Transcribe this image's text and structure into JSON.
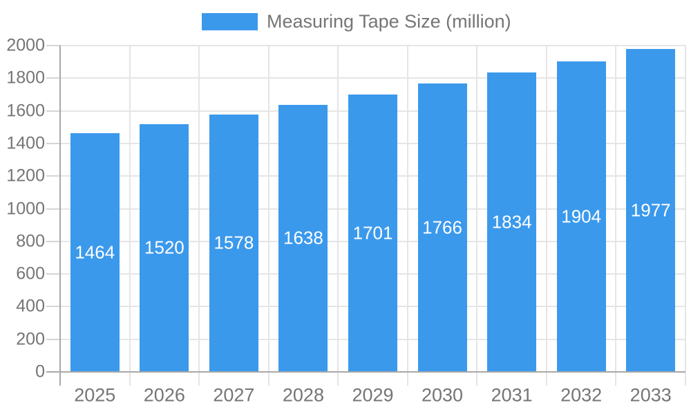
{
  "legend": {
    "label": "Measuring Tape Size (million)"
  },
  "chart_data": {
    "type": "bar",
    "title": "Measuring Tape Size (million)",
    "categories": [
      "2025",
      "2026",
      "2027",
      "2028",
      "2029",
      "2030",
      "2031",
      "2032",
      "2033"
    ],
    "series": [
      {
        "name": "Measuring Tape Size (million)",
        "values": [
          1464,
          1520,
          1578,
          1638,
          1701,
          1766,
          1834,
          1904,
          1977
        ]
      }
    ],
    "value_labels_shown": true,
    "xlabel": "",
    "ylabel": "",
    "ylim": [
      0,
      2000
    ],
    "yticks": [
      0,
      200,
      400,
      600,
      800,
      1000,
      1200,
      1400,
      1600,
      1800,
      2000
    ],
    "grid": true,
    "legend_position": "top-center",
    "colors": {
      "bar": "#3B99EC",
      "grid": "#E5E5E5",
      "tick": "#D5D5D5",
      "axis": "#A8A8A8",
      "text": "#757575",
      "value_label": "#FFFFFF",
      "background": "#FFFFFF"
    }
  }
}
